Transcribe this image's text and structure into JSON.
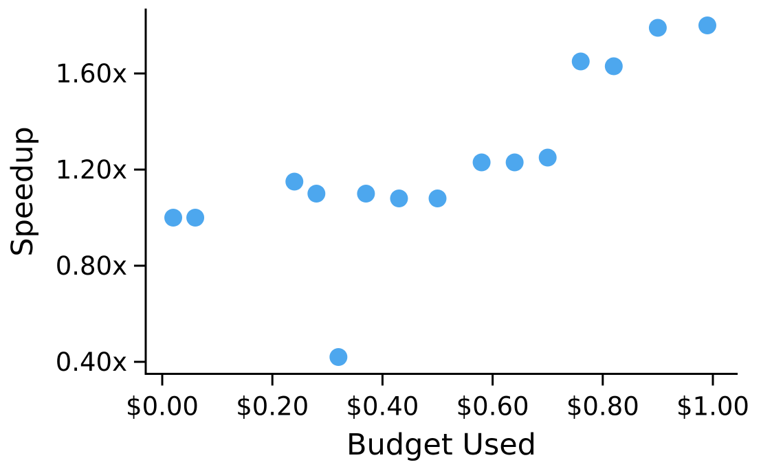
{
  "chart_data": {
    "type": "scatter",
    "title": "",
    "xlabel": "Budget Used",
    "ylabel": "Speedup",
    "x_ticks": [
      {
        "value": 0.0,
        "label": "$0.00"
      },
      {
        "value": 0.2,
        "label": "$0.20"
      },
      {
        "value": 0.4,
        "label": "$0.40"
      },
      {
        "value": 0.6,
        "label": "$0.60"
      },
      {
        "value": 0.8,
        "label": "$0.80"
      },
      {
        "value": 1.0,
        "label": "$1.00"
      }
    ],
    "y_ticks": [
      {
        "value": 0.4,
        "label": "0.40x"
      },
      {
        "value": 0.8,
        "label": "0.80x"
      },
      {
        "value": 1.2,
        "label": "1.20x"
      },
      {
        "value": 1.6,
        "label": "1.60x"
      }
    ],
    "xlim": [
      -0.03,
      1.045
    ],
    "ylim": [
      0.35,
      1.87
    ],
    "grid": false,
    "legend": null,
    "marker_color": "#4DA7EE",
    "axis_color": "#000000",
    "points": [
      {
        "x": 0.02,
        "y": 1.0
      },
      {
        "x": 0.06,
        "y": 1.0
      },
      {
        "x": 0.24,
        "y": 1.15
      },
      {
        "x": 0.28,
        "y": 1.1
      },
      {
        "x": 0.32,
        "y": 0.42
      },
      {
        "x": 0.37,
        "y": 1.1
      },
      {
        "x": 0.43,
        "y": 1.08
      },
      {
        "x": 0.5,
        "y": 1.08
      },
      {
        "x": 0.58,
        "y": 1.23
      },
      {
        "x": 0.64,
        "y": 1.23
      },
      {
        "x": 0.7,
        "y": 1.25
      },
      {
        "x": 0.76,
        "y": 1.65
      },
      {
        "x": 0.82,
        "y": 1.63
      },
      {
        "x": 0.9,
        "y": 1.79
      },
      {
        "x": 0.99,
        "y": 1.8
      }
    ]
  }
}
